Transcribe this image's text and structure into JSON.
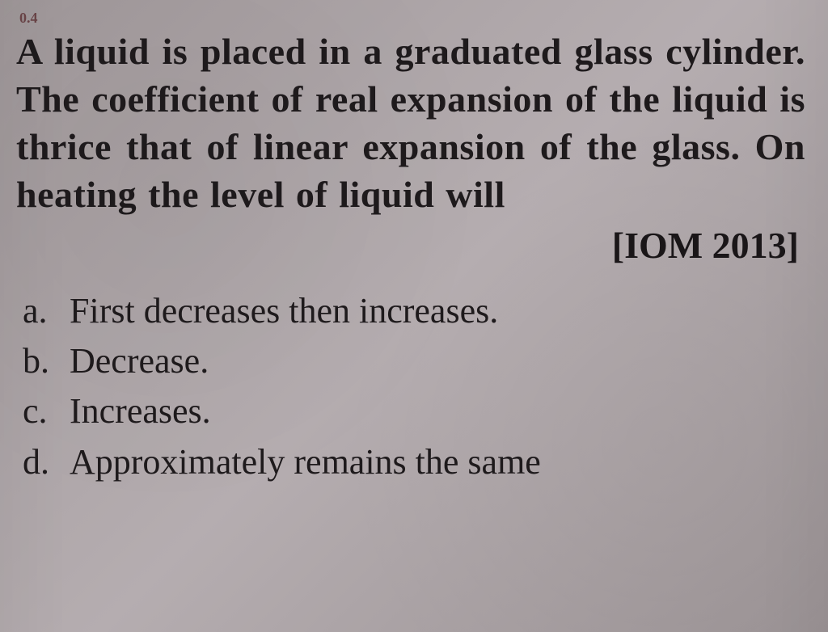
{
  "top_mark": "0.4",
  "question": "A liquid is placed in a graduated glass cylinder. The coefficient of real expansion of the liquid is thrice that of linear expansion of the glass. On heating the level of liquid will",
  "source": "[IOM 2013]",
  "options": [
    {
      "letter": "a.",
      "text": "First decreases then increases."
    },
    {
      "letter": "b.",
      "text": "Decrease."
    },
    {
      "letter": "c.",
      "text": "Increases."
    },
    {
      "letter": "d.",
      "text": "Approximately remains the same"
    }
  ],
  "colors": {
    "paper_bg": "#a8a0a3",
    "text": "#1e1a1c",
    "mark": "#6b4548"
  },
  "typography": {
    "body_fontsize": 46,
    "option_fontsize": 44,
    "font_family": "Times New Roman",
    "font_weight_body": 600,
    "font_weight_source": 700
  }
}
